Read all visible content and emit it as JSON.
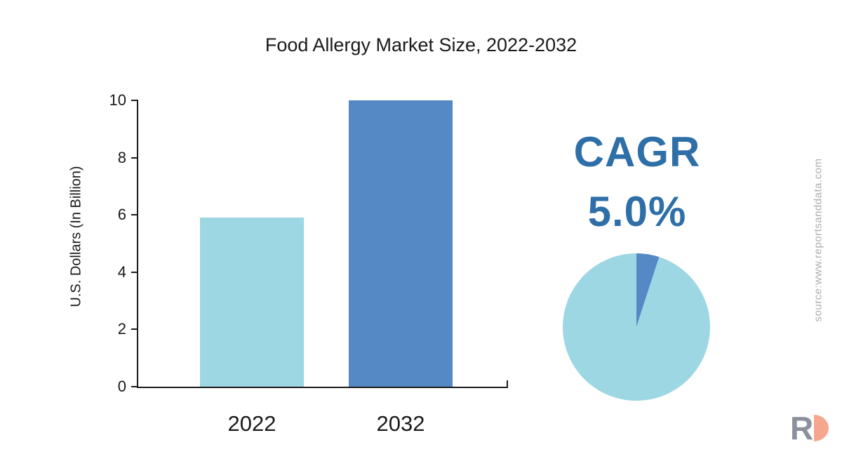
{
  "title": "Food Allergy Market Size, 2022-2032",
  "chart_data": [
    {
      "type": "bar",
      "title": "Food Allergy Market Size, 2022-2032",
      "categories": [
        "2022",
        "2032"
      ],
      "values": [
        5.9,
        10
      ],
      "xlabel": "",
      "ylabel": "U.S. Dollars (In Billion)",
      "ylim": [
        0,
        10
      ],
      "yticks": [
        0,
        2,
        4,
        6,
        8,
        10
      ],
      "grid": false,
      "legend": "none",
      "bar_colors": [
        "#9dd7e3",
        "#5589c6"
      ]
    },
    {
      "type": "pie",
      "slices": [
        {
          "name": "cagr-slice",
          "value": 5,
          "color": "#5589c6"
        },
        {
          "name": "remainder-slice",
          "value": 95,
          "color": "#9dd7e3"
        }
      ],
      "start_angle_deg": -90,
      "direction": "clockwise"
    }
  ],
  "cagr": {
    "label": "CAGR",
    "value": "5.0%",
    "color": "#2f6fa8"
  },
  "source": {
    "text": "source:www.reportsanddata.com"
  },
  "logo": {
    "letter_r": "R"
  }
}
